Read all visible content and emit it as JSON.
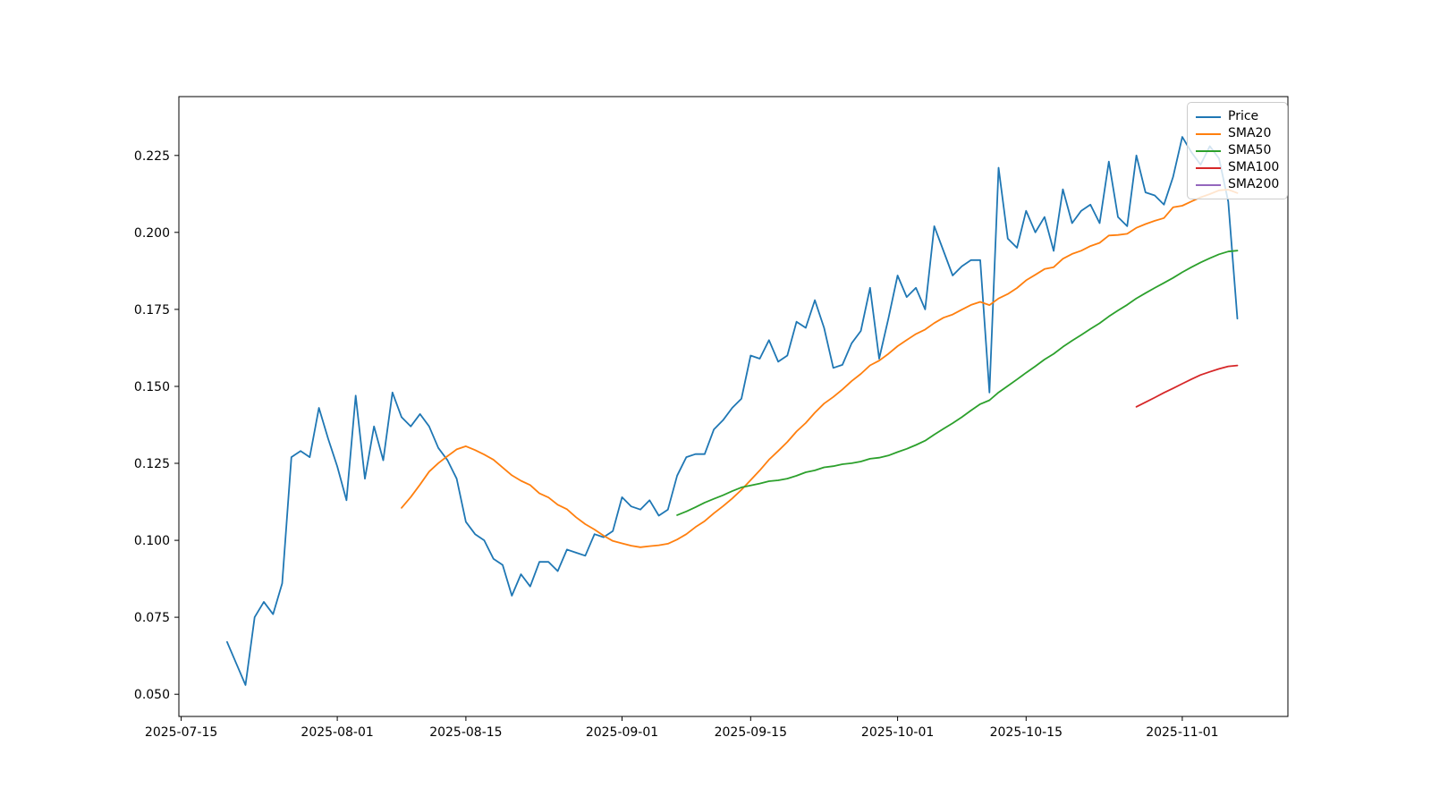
{
  "figure": {
    "background": "#ffffff",
    "frame_color": "#000000"
  },
  "chart_data": {
    "type": "line",
    "title": "",
    "xlabel": "",
    "ylabel": "",
    "grid": false,
    "x_axis": {
      "epoch": "2025-07-15",
      "xlim_days": [
        -0.25,
        120.5
      ],
      "tick_labels": [
        "2025-07-15",
        "2025-08-01",
        "2025-08-15",
        "2025-09-01",
        "2025-09-15",
        "2025-10-01",
        "2025-10-15",
        "2025-11-01"
      ]
    },
    "y_axis": {
      "ylim": [
        0.0428,
        0.2441
      ],
      "ticks": [
        0.05,
        0.075,
        0.1,
        0.125,
        0.15,
        0.175,
        0.2,
        0.225
      ],
      "tick_decimals": 3
    },
    "legend": {
      "position": "upper right",
      "entries": [
        "Price",
        "SMA20",
        "SMA50",
        "SMA100",
        "SMA200"
      ]
    },
    "series": [
      {
        "name": "Price",
        "color": "#1f77b4",
        "kind": "price"
      },
      {
        "name": "SMA20",
        "color": "#ff7f0e",
        "kind": "sma",
        "window": 20
      },
      {
        "name": "SMA50",
        "color": "#2ca02c",
        "kind": "sma",
        "window": 50
      },
      {
        "name": "SMA100",
        "color": "#d62728",
        "kind": "sma",
        "window": 100
      },
      {
        "name": "SMA200",
        "color": "#9467bd",
        "kind": "sma",
        "window": 200
      }
    ],
    "price": {
      "start_date": "2025-07-20",
      "frequency": "daily",
      "values": [
        0.067,
        0.06,
        0.053,
        0.075,
        0.08,
        0.076,
        0.086,
        0.127,
        0.129,
        0.127,
        0.143,
        0.133,
        0.124,
        0.113,
        0.147,
        0.12,
        0.137,
        0.126,
        0.148,
        0.14,
        0.137,
        0.141,
        0.137,
        0.13,
        0.126,
        0.12,
        0.106,
        0.102,
        0.1,
        0.094,
        0.092,
        0.082,
        0.089,
        0.085,
        0.093,
        0.093,
        0.09,
        0.097,
        0.096,
        0.095,
        0.102,
        0.101,
        0.103,
        0.114,
        0.111,
        0.11,
        0.113,
        0.108,
        0.11,
        0.121,
        0.127,
        0.128,
        0.128,
        0.136,
        0.139,
        0.143,
        0.146,
        0.16,
        0.159,
        0.165,
        0.158,
        0.16,
        0.171,
        0.169,
        0.178,
        0.169,
        0.156,
        0.157,
        0.164,
        0.168,
        0.182,
        0.159,
        0.172,
        0.186,
        0.179,
        0.182,
        0.175,
        0.202,
        0.194,
        0.186,
        0.189,
        0.191,
        0.191,
        0.148,
        0.221,
        0.198,
        0.195,
        0.207,
        0.2,
        0.205,
        0.194,
        0.214,
        0.203,
        0.207,
        0.209,
        0.203,
        0.223,
        0.205,
        0.202,
        0.225,
        0.213,
        0.212,
        0.209,
        0.218,
        0.231,
        0.226,
        0.222,
        0.228,
        0.224,
        0.21,
        0.172
      ]
    }
  }
}
